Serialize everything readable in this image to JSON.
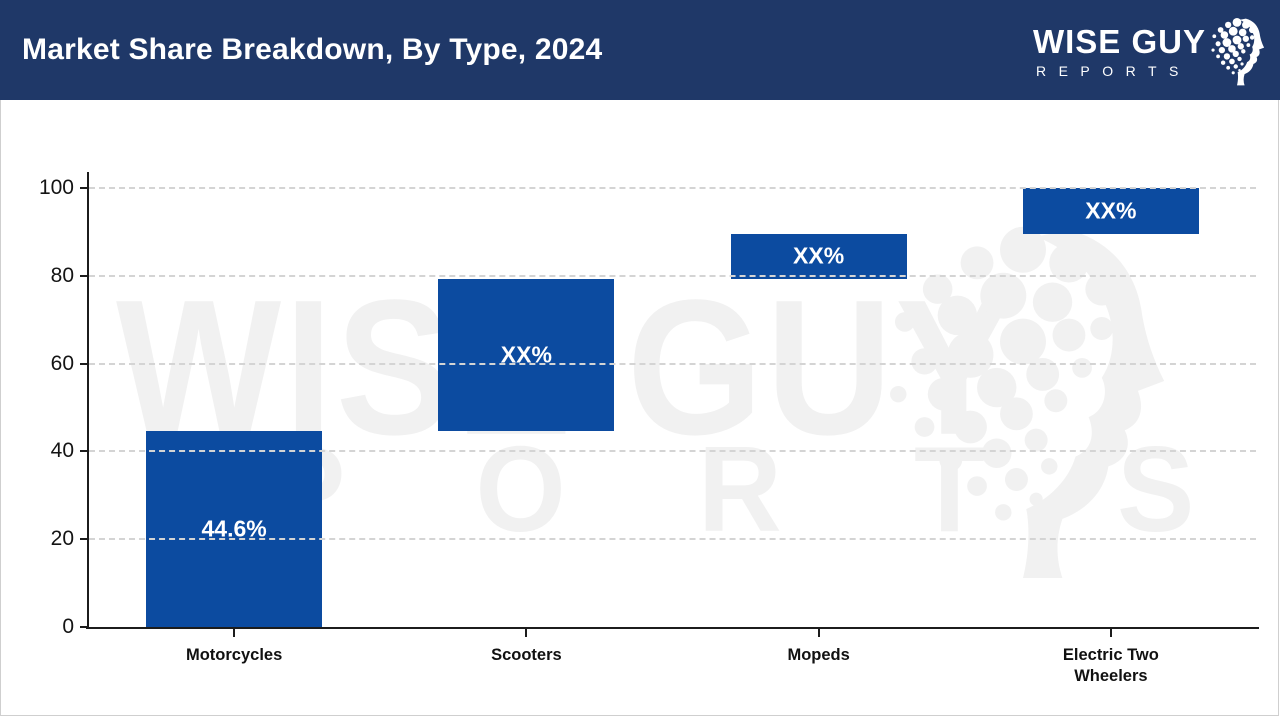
{
  "header": {
    "title": "Market Share Breakdown, By Type, 2024",
    "logo": {
      "line1": "WISE GUY",
      "line2": "REPORTS"
    }
  },
  "watermark": {
    "line1": "WISE GUY",
    "line2": "P O R T S"
  },
  "chart_data": {
    "type": "bar",
    "subtype": "waterfall",
    "title": "Market Share Breakdown, By Type, 2024",
    "categories": [
      "Motorcycles",
      "Scooters",
      "Mopeds",
      "Electric Two Wheelers"
    ],
    "segments": [
      {
        "category": "Motorcycles",
        "start": 0,
        "end": 44.6,
        "label": "44.6%"
      },
      {
        "category": "Scooters",
        "start": 44.6,
        "end": 79.3,
        "label": "XX%"
      },
      {
        "category": "Mopeds",
        "start": 79.3,
        "end": 89.6,
        "label": "XX%"
      },
      {
        "category": "Electric Two Wheelers",
        "start": 89.6,
        "end": 100,
        "label": "XX%"
      }
    ],
    "y_ticks": [
      0,
      20,
      40,
      60,
      80,
      100
    ],
    "ylim": [
      0,
      100
    ],
    "xlabel": "",
    "ylabel": "",
    "grid": "horizontal-dashed",
    "legend": "none"
  },
  "colors": {
    "header_bg": "#1F3868",
    "bar": "#0C4BA0",
    "bar_label": "#ffffff",
    "grid": "#d4d4d4",
    "axis": "#1c1c1c",
    "watermark": "#f1f1f1",
    "frame": "#cfcfcf"
  }
}
